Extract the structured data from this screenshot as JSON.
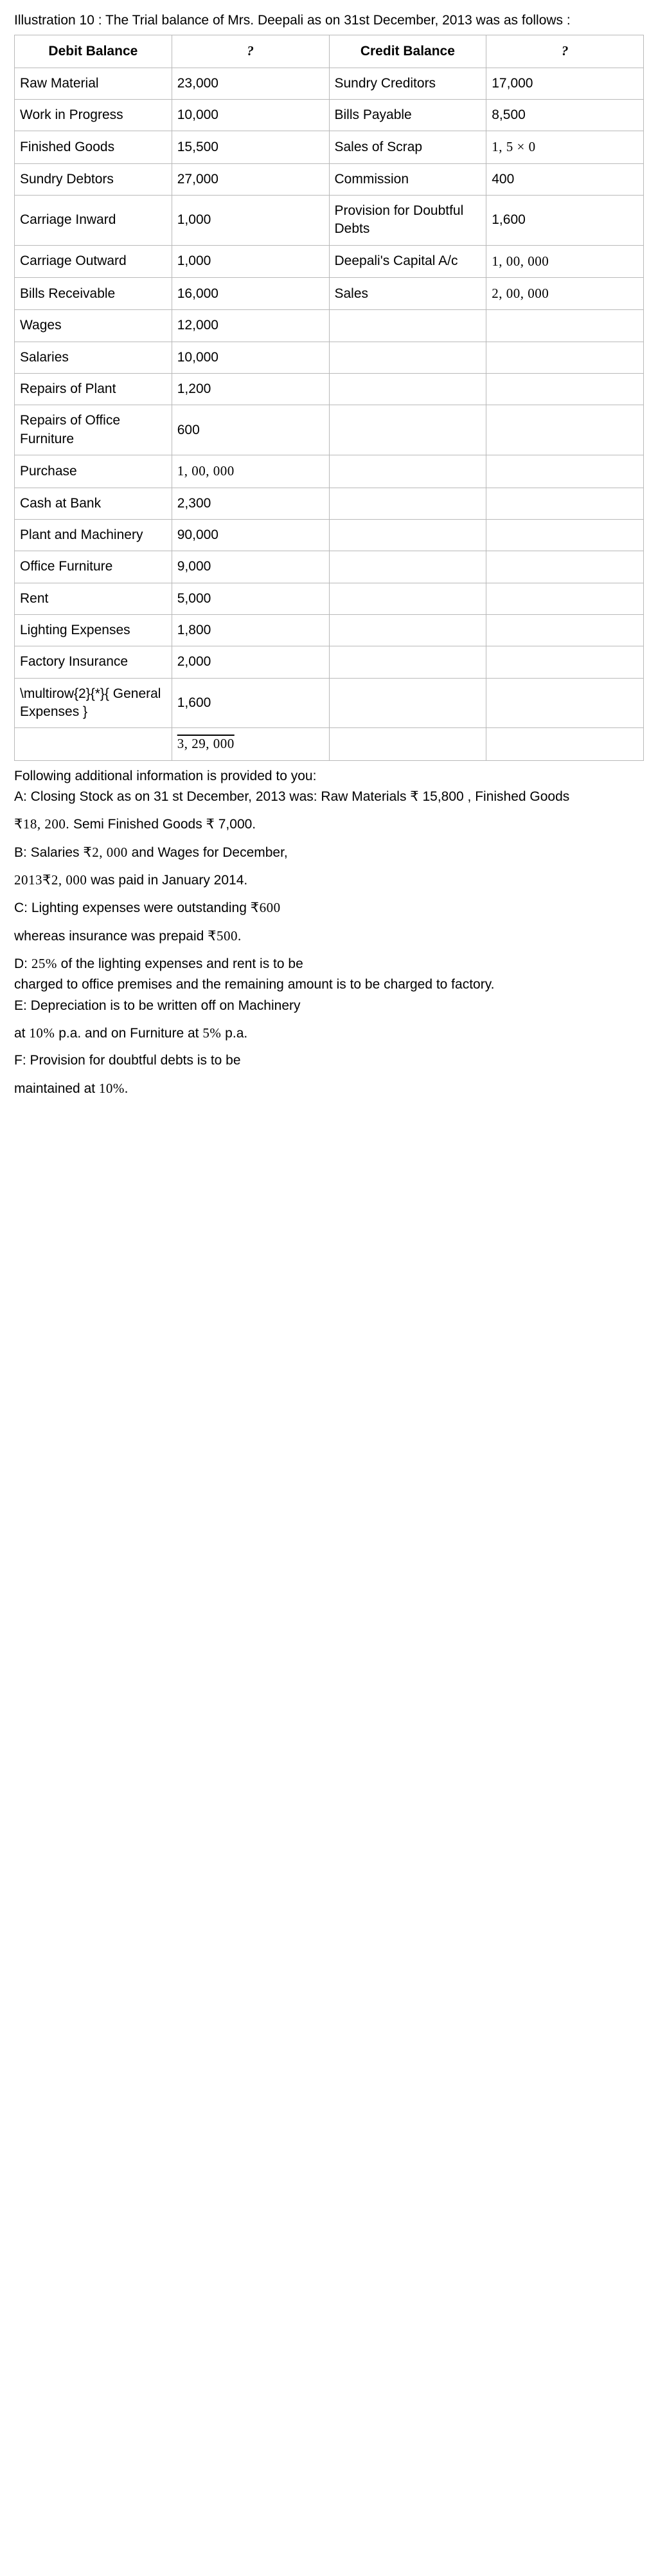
{
  "intro": "Illustration 10 : The Trial balance of Mrs. Deepali as on 31st December, 2013 was as follows :",
  "headers": {
    "debit_label": "Debit Balance",
    "debit_amt": "?",
    "credit_label": "Credit Balance",
    "credit_amt": "?"
  },
  "rows": [
    {
      "dl": "Raw Material",
      "da": "23,000",
      "cl": "Sundry Creditors",
      "ca": "17,000"
    },
    {
      "dl": "Work in Progress",
      "da": "10,000",
      "cl": "Bills Payable",
      "ca": "8,500"
    },
    {
      "dl": "Finished Goods",
      "da": "15,500",
      "cl": "Sales of Scrap",
      "ca": "1, 5 × 0",
      "ca_math": true
    },
    {
      "dl": "Sundry Debtors",
      "da": "27,000",
      "cl": "Commission",
      "ca": "400"
    },
    {
      "dl": "Carriage Inward",
      "da": "1,000",
      "cl": "Provision for Doubtful Debts",
      "ca": "1,600"
    },
    {
      "dl": "Carriage Outward",
      "da": "1,000",
      "cl": "Deepali's Capital A/c",
      "ca": "1, 00, 000",
      "ca_math": true
    },
    {
      "dl": "Bills Receivable",
      "da": "16,000",
      "cl": "Sales",
      "ca": "2, 00, 000",
      "ca_math": true
    },
    {
      "dl": "Wages",
      "da": "12,000",
      "cl": "",
      "ca": ""
    },
    {
      "dl": "Salaries",
      "da": "10,000",
      "cl": "",
      "ca": ""
    },
    {
      "dl": "Repairs of Plant",
      "da": "1,200",
      "cl": "",
      "ca": ""
    },
    {
      "dl": "Repairs of Office Furniture",
      "da": "600",
      "cl": "",
      "ca": ""
    },
    {
      "dl": "Purchase",
      "da": "1, 00, 000",
      "cl": "",
      "ca": "",
      "da_math": true
    },
    {
      "dl": "Cash at Bank",
      "da": "2,300",
      "cl": "",
      "ca": ""
    },
    {
      "dl": "Plant and Machinery",
      "da": "90,000",
      "cl": "",
      "ca": ""
    },
    {
      "dl": "Office Furniture",
      "da": "9,000",
      "cl": "",
      "ca": ""
    },
    {
      "dl": "Rent",
      "da": "5,000",
      "cl": "",
      "ca": ""
    },
    {
      "dl": "Lighting Expenses",
      "da": "1,800",
      "cl": "",
      "ca": ""
    },
    {
      "dl": "Factory Insurance",
      "da": "2,000",
      "cl": "",
      "ca": ""
    },
    {
      "dl": "\\multirow{2}{*}{ General Expenses }",
      "da": "1,600",
      "cl": "",
      "ca": ""
    },
    {
      "dl": "",
      "da": "3, 29, 000",
      "cl": "",
      "ca": "",
      "da_math": true,
      "da_overline": true
    }
  ],
  "notes": {
    "n0": "Following additional information is provided to you:",
    "n1": "A:  Closing Stock as on 31 st December, 2013 was: Raw Materials ₹ 15,800 , Finished Goods",
    "n2a": "₹18, 200.",
    "n2b": " Semi Finished Goods ₹ 7,000.",
    "n3a": "B:  Salaries ",
    "n3b": "₹2, 000",
    "n3c": " and Wages for December,",
    "n4a": "2013₹2, 000",
    "n4b": " was paid in January 2014.",
    "n5a": "C:  Lighting expenses were outstanding ",
    "n5b": "₹600",
    "n6a": "whereas insurance was prepaid ",
    "n6b": "₹500.",
    "n7a": "D:  ",
    "n7b": "25%",
    "n7c": " of the lighting expenses and rent is to be",
    "n8": "charged to office premises and the remaining amount is to be charged to factory.",
    "n9": "E:  Depreciation is to be written off on Machinery",
    "n10a": "at ",
    "n10b": "10%",
    "n10c": " p.a. and on Furniture at ",
    "n10d": "5%",
    "n10e": " p.a.",
    "n11": "F:  Provision for doubtful debts is to be",
    "n12a": "maintained at ",
    "n12b": "10%."
  }
}
